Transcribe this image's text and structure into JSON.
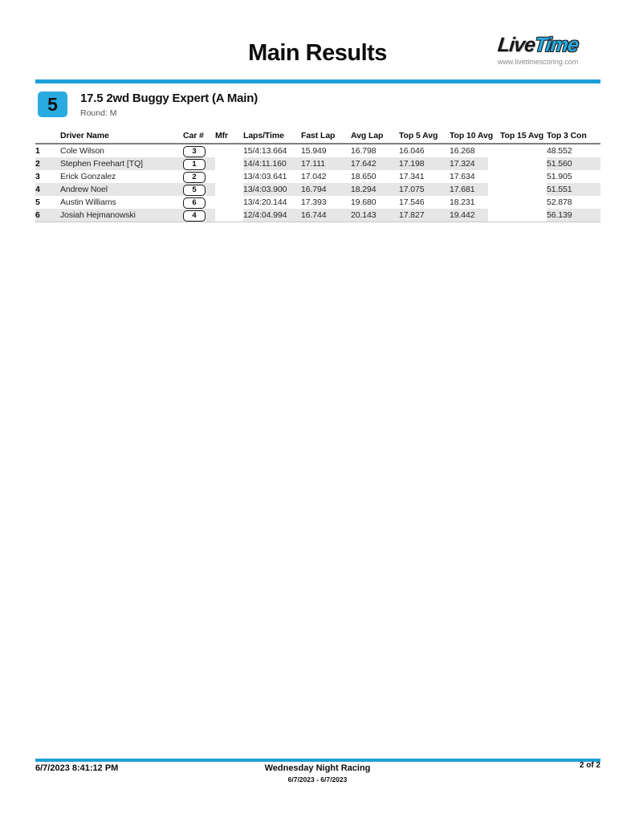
{
  "header": {
    "title": "Main Results",
    "logo": {
      "part1": "Live",
      "part2": "Time",
      "website": "www.livetimescoring.com"
    }
  },
  "race": {
    "number": "5",
    "class_name": "17.5 2wd Buggy Expert (A Main)",
    "round_label": "Round: M"
  },
  "table": {
    "headers": [
      "Driver Name",
      "Car #",
      "Mfr",
      "Laps/Time",
      "Fast Lap",
      "Avg Lap",
      "Top 5 Avg",
      "Top 10 Avg",
      "Top 15 Avg",
      "Top 3 Con"
    ],
    "rows": [
      {
        "pos": "1",
        "driver": "Cole Wilson",
        "car": "3",
        "mfr": "",
        "laps_time": "15/4:13.664",
        "fast_lap": "15.949",
        "avg_lap": "16.798",
        "top5": "16.046",
        "top10": "16.268",
        "top15": "",
        "top3con": "48.552"
      },
      {
        "pos": "2",
        "driver": "Stephen Freehart [TQ]",
        "car": "1",
        "mfr": "",
        "laps_time": "14/4:11.160",
        "fast_lap": "17.111",
        "avg_lap": "17.642",
        "top5": "17.198",
        "top10": "17.324",
        "top15": "",
        "top3con": "51.560"
      },
      {
        "pos": "3",
        "driver": "Erick Gonzalez",
        "car": "2",
        "mfr": "",
        "laps_time": "13/4:03.641",
        "fast_lap": "17.042",
        "avg_lap": "18.650",
        "top5": "17.341",
        "top10": "17.634",
        "top15": "",
        "top3con": "51.905"
      },
      {
        "pos": "4",
        "driver": "Andrew Noel",
        "car": "5",
        "mfr": "",
        "laps_time": "13/4:03.900",
        "fast_lap": "16.794",
        "avg_lap": "18.294",
        "top5": "17.075",
        "top10": "17.681",
        "top15": "",
        "top3con": "51.551"
      },
      {
        "pos": "5",
        "driver": "Austin Williams",
        "car": "6",
        "mfr": "",
        "laps_time": "13/4:20.144",
        "fast_lap": "17.393",
        "avg_lap": "19.680",
        "top5": "17.546",
        "top10": "18.231",
        "top15": "",
        "top3con": "52.878"
      },
      {
        "pos": "6",
        "driver": "Josiah Hejmanowski",
        "car": "4",
        "mfr": "",
        "laps_time": "12/4:04.994",
        "fast_lap": "16.744",
        "avg_lap": "20.143",
        "top5": "17.827",
        "top10": "19.442",
        "top15": "",
        "top3con": "56.139"
      }
    ]
  },
  "footer": {
    "generated": "6/7/2023 8:41:12 PM",
    "event_name": "Wednesday Night Racing",
    "event_dates": "6/7/2023 - 6/7/2023",
    "page_number": "2 of 2"
  },
  "colors": {
    "accent_cyan": "#29ABE2",
    "bar_cyan": "#1E9FD8",
    "row_shade": "#E6E6E6"
  }
}
